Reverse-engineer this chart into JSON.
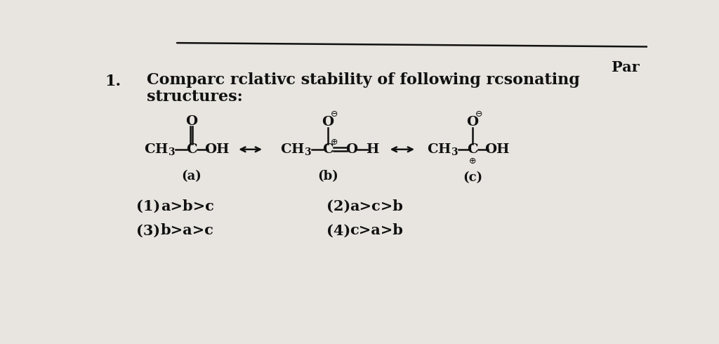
{
  "background_color": "#e8e5e0",
  "text_color": "#111111",
  "line_color": "#111111",
  "par_text": "Par",
  "q_number": "1.",
  "q_line1": "Comparc rclativc stability of following rcsonating",
  "q_line2": "structures:",
  "struct_a_label": "(a)",
  "struct_b_label": "(b)",
  "struct_c_label": "(c)",
  "options": [
    [
      "(1)",
      "a>b>c"
    ],
    [
      "(2)",
      "a>c>b"
    ],
    [
      "(3)",
      "b>a>c"
    ],
    [
      "(4)",
      "c>a>b"
    ]
  ],
  "font_size_q": 16,
  "font_size_struct": 14,
  "font_size_label": 13,
  "font_size_options": 15,
  "font_size_par": 15
}
